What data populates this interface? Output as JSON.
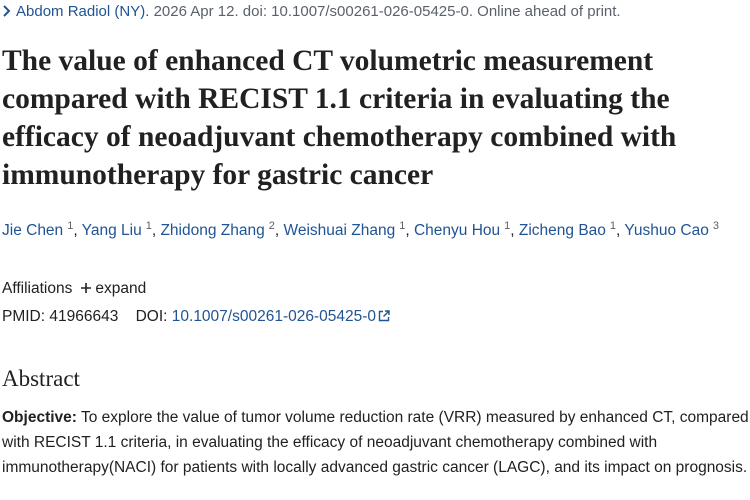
{
  "citation": {
    "journal": "Abdom Radiol (NY).",
    "details": "2026 Apr 12. doi: 10.1007/s00261-026-05425-0. Online ahead of print."
  },
  "title": "The value of enhanced CT volumetric measurement compared with RECIST 1.1 criteria in evaluating the efficacy of neoadjuvant chemotherapy combined with immunotherapy for gastric cancer",
  "authors": [
    {
      "name": "Jie Chen",
      "affiliation": 1
    },
    {
      "name": "Yang Liu",
      "affiliation": 1
    },
    {
      "name": "Zhidong Zhang",
      "affiliation": 2
    },
    {
      "name": "Weishuai Zhang",
      "affiliation": 1
    },
    {
      "name": "Chenyu Hou",
      "affiliation": 1
    },
    {
      "name": "Zicheng Bao",
      "affiliation": 1
    },
    {
      "name": "Yushuo Cao",
      "affiliation": 3
    }
  ],
  "author_separator": ",",
  "affiliations": {
    "label": "Affiliations",
    "toggle": "expand"
  },
  "identifiers": {
    "pmid_label": "PMID:",
    "pmid": "41966643",
    "doi_label": "DOI:",
    "doi": "10.1007/s00261-026-05425-0"
  },
  "abstract": {
    "heading": "Abstract",
    "objective_label": "Objective:",
    "objective_text": "To explore the value of tumor volume reduction rate (VRR) measured by enhanced CT, compared with RECIST 1.1 criteria, in evaluating the efficacy of neoadjuvant chemotherapy combined with immunotherapy(NACI) for patients with locally advanced gastric cancer (LAGC), and its impact on prognosis."
  }
}
